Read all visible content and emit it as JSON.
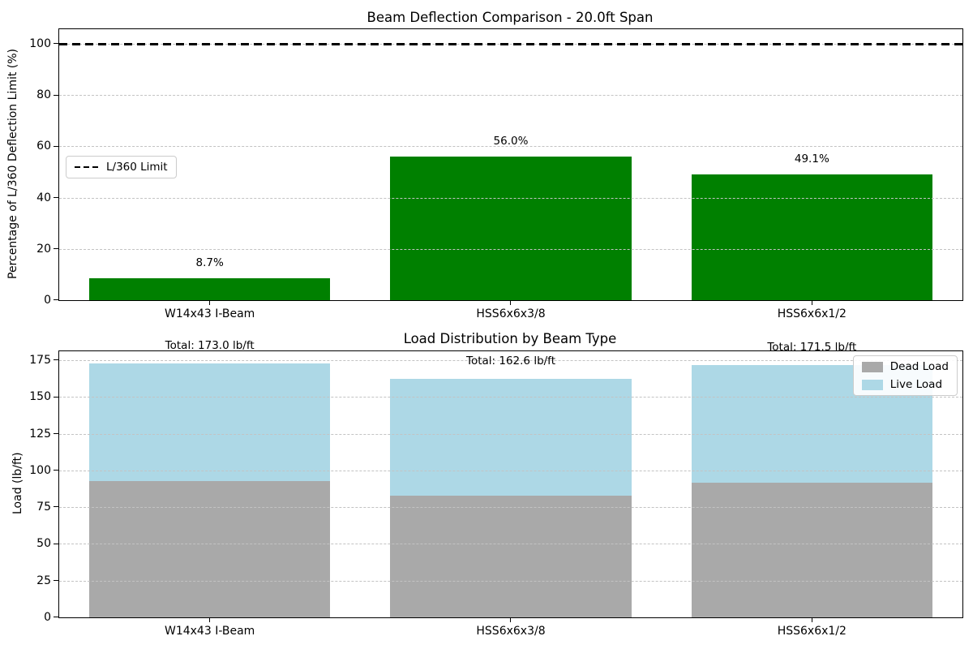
{
  "chart_data": [
    {
      "type": "bar",
      "title": "Beam Deflection Comparison - 20.0ft Span",
      "ylabel": "Percentage of L/360 Deflection Limit (%)",
      "categories": [
        "W14x43 I-Beam",
        "HSS6x6x3/8",
        "HSS6x6x1/2"
      ],
      "values": [
        8.7,
        56.0,
        49.1
      ],
      "bar_labels": [
        "8.7%",
        "56.0%",
        "49.1%"
      ],
      "bar_color": "#008000",
      "ylim": [
        0,
        105.7
      ],
      "yticks": [
        0,
        20,
        40,
        60,
        80,
        100
      ],
      "grid": true,
      "legend_location": "center left",
      "ref_line": {
        "value": 100,
        "label": "L/360 Limit",
        "color": "#000000",
        "linestyle": "dashed"
      }
    },
    {
      "type": "stacked-bar",
      "title": "Load Distribution by Beam Type",
      "ylabel": "Load (lb/ft)",
      "categories": [
        "W14x43 I-Beam",
        "HSS6x6x3/8",
        "HSS6x6x1/2"
      ],
      "series": [
        {
          "name": "Dead Load",
          "color": "#a9a9a9",
          "values": [
            93.0,
            82.6,
            91.5
          ]
        },
        {
          "name": "Live Load",
          "color": "#add8e6",
          "values": [
            80.0,
            80.0,
            80.0
          ]
        }
      ],
      "totals": [
        173.0,
        162.6,
        171.5
      ],
      "total_labels": [
        "Total: 173.0 lb/ft",
        "Total: 162.6 lb/ft",
        "Total: 171.5 lb/ft"
      ],
      "ylim": [
        0,
        181.1
      ],
      "yticks": [
        0,
        25,
        50,
        75,
        100,
        125,
        150,
        175
      ],
      "grid": true,
      "legend_location": "upper right"
    }
  ]
}
